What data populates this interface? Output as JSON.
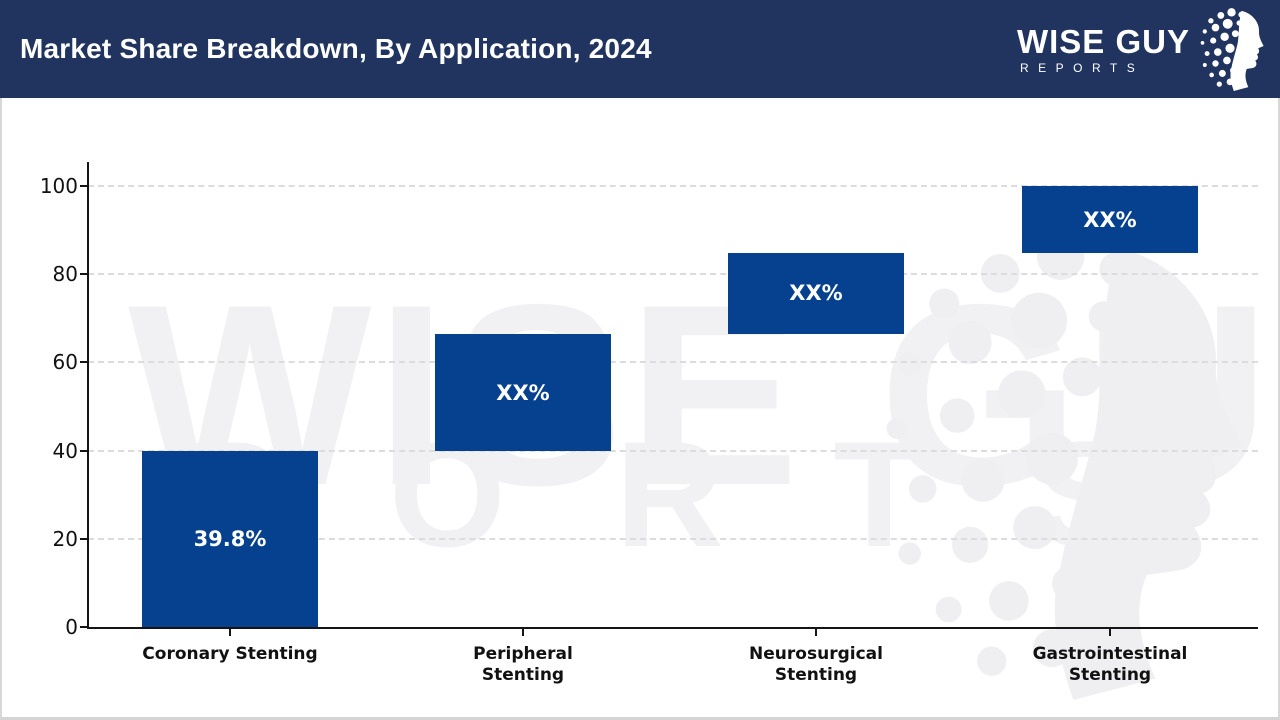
{
  "header": {
    "title": "Market Share Breakdown, By Application, 2024",
    "logo": {
      "line1": "WISE GUY",
      "line2": "REPORTS"
    }
  },
  "watermark": {
    "line1": "WISE GUY",
    "line2": "P O R T S"
  },
  "colors": {
    "header_bg": "#20345f",
    "bar": "#05418f",
    "bar_label": "#ffffff",
    "gridline": "#dcdcdc",
    "axis": "#151515",
    "watermark": "#f1f1f4"
  },
  "chart_data": {
    "type": "bar",
    "variant": "waterfall",
    "title": "Market Share Breakdown, By Application, 2024",
    "categories": [
      "Coronary Stenting",
      "Peripheral Stenting",
      "Neurosurgical Stenting",
      "Gastrointestinal Stenting"
    ],
    "category_label_lines": [
      [
        "Coronary Stenting"
      ],
      [
        "Peripheral",
        "Stenting"
      ],
      [
        "Neurosurgical",
        "Stenting"
      ],
      [
        "Gastrointestinal",
        "Stenting"
      ]
    ],
    "segments": [
      {
        "category": "Coronary Stenting",
        "start": 0,
        "end": 39.8,
        "label": "39.8%"
      },
      {
        "category": "Peripheral Stenting",
        "start": 39.8,
        "end": 66.5,
        "label": "XX%"
      },
      {
        "category": "Neurosurgical Stenting",
        "start": 66.5,
        "end": 84.8,
        "label": "XX%"
      },
      {
        "category": "Gastrointestinal Stenting",
        "start": 84.8,
        "end": 100,
        "label": "XX%"
      }
    ],
    "xlabel": "",
    "ylabel": "",
    "yticks": [
      0,
      20,
      40,
      60,
      80,
      100
    ],
    "ylim": [
      0,
      105.5
    ],
    "grid": "horizontal-dashed",
    "legend": "none",
    "bar_color": "#05418f",
    "bar_label_color": "#ffffff"
  }
}
